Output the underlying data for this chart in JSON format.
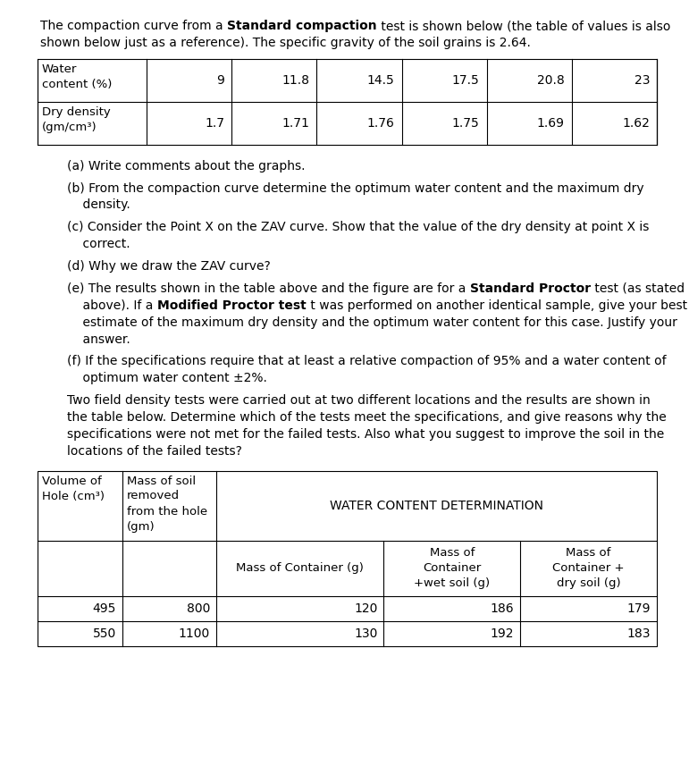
{
  "bg_color": "#ffffff",
  "text_color": "#000000",
  "intro": {
    "line1_pre": "The compaction curve from a ",
    "line1_bold": "Standard compaction",
    "line1_post": " test is shown below (the table of values is also",
    "line2": "shown below just as a reference). The specific gravity of the soil grains is 2.64."
  },
  "table1": {
    "row1_header": "Water\ncontent (%)",
    "row2_header": "Dry density\n(gm/cm³)",
    "row1_data": [
      "9",
      "11.8",
      "14.5",
      "17.5",
      "20.8",
      "23"
    ],
    "row2_data": [
      "1.7",
      "1.71",
      "1.76",
      "1.75",
      "1.69",
      "1.62"
    ]
  },
  "qa": [
    {
      "text": "(a) Write comments about the graphs.",
      "lines": 1
    },
    {
      "text": "(b) From the compaction curve determine the optimum water content and the maximum dry",
      "cont": "    density.",
      "lines": 2
    },
    {
      "text": "(c) Consider the Point X on the ZAV curve. Show that the value of the dry density at point X is",
      "cont": "    correct.",
      "lines": 2
    },
    {
      "text": "(d) Why we draw the ZAV curve?",
      "lines": 1
    }
  ],
  "qe_line1_pre": "(e) The results shown in the table above and the figure are for a ",
  "qe_line1_bold": "Standard Proctor",
  "qe_line1_post": " test (as stated",
  "qe_line2_pre": "    above). If a ",
  "qe_line2_bold": "Modified Proctor test",
  "qe_line2_post": " t was performed on another identical sample, give your best",
  "qe_line3": "    estimate of the maximum dry density and the optimum water content for this case. Justify your",
  "qe_line4": "    answer.",
  "qf_line1": "(f) If the specifications require that at least a relative compaction of 95% and a water content of",
  "qf_line2": "    optimum water content ±2%.",
  "para_lines": [
    "Two field density tests were carried out at two different locations and the results are shown in",
    "the table below. Determine which of the tests meet the specifications, and give reasons why the",
    "specifications were not met for the failed tests. Also what you suggest to improve the soil in the",
    "locations of the failed tests?"
  ],
  "table2": {
    "col1_header": "Volume of\nHole (cm³)",
    "col2_header": "Mass of soil\nremoved\nfrom the hole\n(gm)",
    "wcd_header": "WATER CONTENT DETERMINATION",
    "sub1": "Mass of Container (g)",
    "sub2": "Mass of\nContainer\n+wet soil (g)",
    "sub3": "Mass of\nContainer +\ndry soil (g)",
    "data": [
      [
        "495",
        "800",
        "120",
        "186",
        "179"
      ],
      [
        "550",
        "1100",
        "130",
        "192",
        "183"
      ]
    ]
  }
}
